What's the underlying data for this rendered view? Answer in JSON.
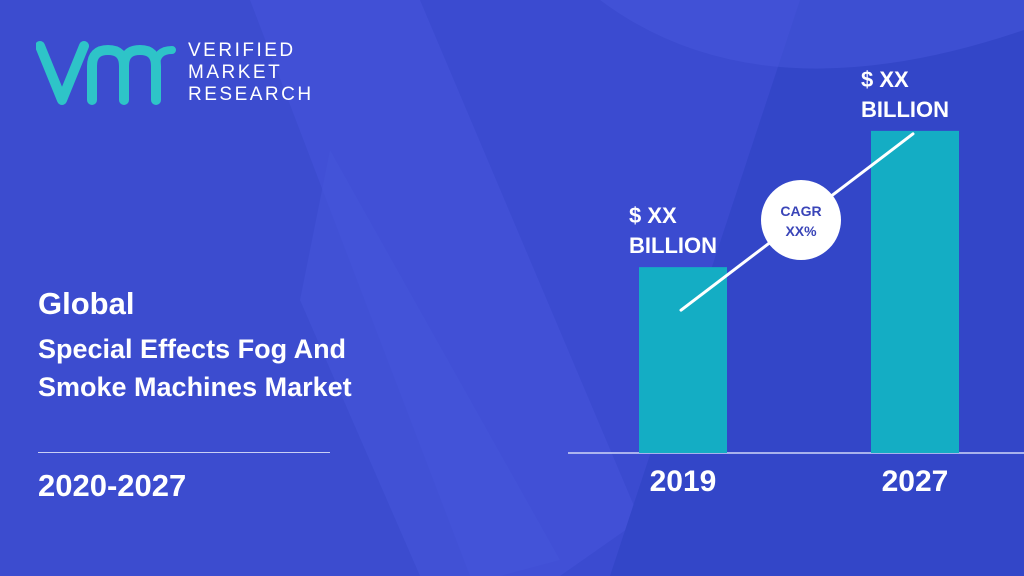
{
  "brand": {
    "line1": "VERIFIED",
    "line2": "MARKET",
    "line3": "RESEARCH",
    "mark_icon": "vmr-logo-icon"
  },
  "title": {
    "line1": "Global",
    "line2": "Special Effects Fog And",
    "line3": "Smoke Machines Market"
  },
  "period": "2020-2027",
  "colors": {
    "background": "#3b4bd0",
    "bar": "#14adc4",
    "accent_teal": "#2ec4c8"
  },
  "chart_data": {
    "type": "bar",
    "categories": [
      "2019",
      "2027"
    ],
    "values": [
      45,
      78
    ],
    "value_labels": [
      [
        "$ XX",
        "BILLION"
      ],
      [
        "$ XX",
        "BILLION"
      ]
    ],
    "ylim": [
      0,
      100
    ],
    "annotation": {
      "line1": "CAGR",
      "line2": "XX%"
    }
  }
}
